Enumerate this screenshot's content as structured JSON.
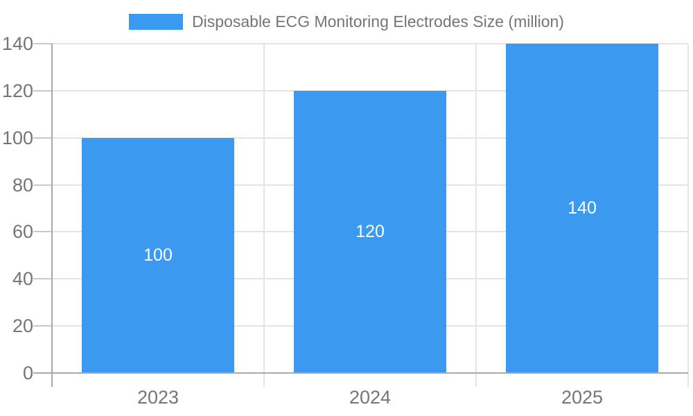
{
  "chart_data": {
    "type": "bar",
    "title": "Disposable ECG Monitoring Electrodes Size (million)",
    "categories": [
      "2023",
      "2024",
      "2025"
    ],
    "values": [
      100,
      120,
      140
    ],
    "xlabel": "",
    "ylabel": "",
    "ylim": [
      0,
      140
    ],
    "ytick_step": 20,
    "yticks": [
      0,
      20,
      40,
      60,
      80,
      100,
      120,
      140
    ],
    "grid": true,
    "legend_position": "top-center",
    "bar_labels_inside": true,
    "colors": {
      "bar": "#3b99f0",
      "bar_label": "#ffffff",
      "axis_text": "#757575",
      "title_text": "#757575",
      "axis_line": "#a9a9a9",
      "grid_line": "#e4e4e4",
      "tick_line": "#c9c9c9"
    }
  }
}
